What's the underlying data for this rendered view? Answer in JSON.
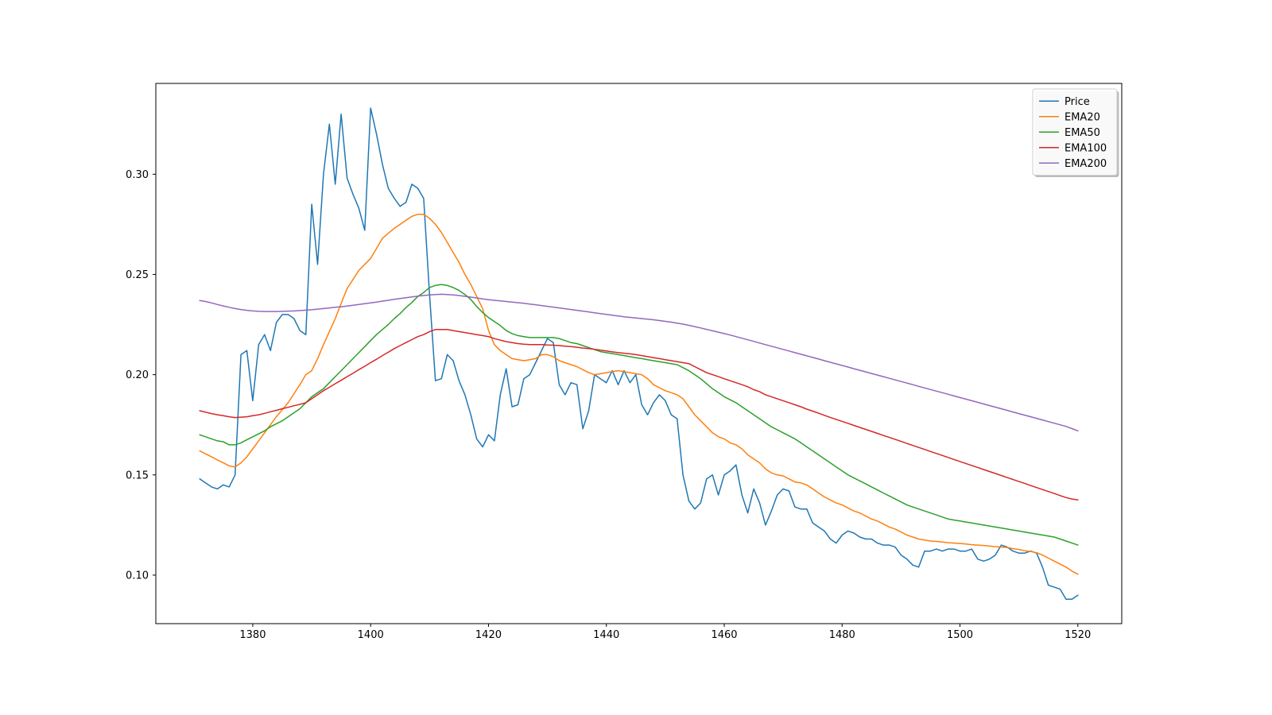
{
  "figure": {
    "background": "#ffffff",
    "frame_color": "#000000"
  },
  "chart_data": {
    "type": "line",
    "title": "",
    "xlabel": "",
    "ylabel": "",
    "grid": false,
    "legend": {
      "position": "upper right",
      "entries": [
        "Price",
        "EMA20",
        "EMA50",
        "EMA100",
        "EMA200"
      ]
    },
    "x": {
      "start": 1371,
      "step": 1,
      "count": 150
    },
    "xlim": [
      1363.55,
      1527.45
    ],
    "ylim": [
      0.0758,
      0.3453
    ],
    "x_ticks": [
      1380,
      1400,
      1420,
      1440,
      1460,
      1480,
      1500,
      1520
    ],
    "y_ticks": [
      0.1,
      0.15,
      0.2,
      0.25,
      0.3
    ],
    "y_tick_labels": [
      "0.10",
      "0.15",
      "0.20",
      "0.25",
      "0.30"
    ],
    "series": [
      {
        "name": "Price",
        "color": "#1f77b4",
        "values": [
          0.148,
          0.146,
          0.144,
          0.143,
          0.145,
          0.144,
          0.15,
          0.21,
          0.212,
          0.187,
          0.215,
          0.22,
          0.212,
          0.226,
          0.23,
          0.23,
          0.228,
          0.222,
          0.22,
          0.285,
          0.255,
          0.3,
          0.325,
          0.295,
          0.33,
          0.298,
          0.29,
          0.283,
          0.272,
          0.333,
          0.32,
          0.305,
          0.293,
          0.288,
          0.284,
          0.286,
          0.295,
          0.293,
          0.288,
          0.24,
          0.197,
          0.198,
          0.21,
          0.207,
          0.197,
          0.19,
          0.18,
          0.168,
          0.164,
          0.17,
          0.167,
          0.19,
          0.203,
          0.184,
          0.185,
          0.198,
          0.2,
          0.206,
          0.212,
          0.218,
          0.216,
          0.195,
          0.19,
          0.196,
          0.195,
          0.173,
          0.182,
          0.2,
          0.198,
          0.196,
          0.202,
          0.195,
          0.202,
          0.196,
          0.2,
          0.185,
          0.18,
          0.186,
          0.19,
          0.187,
          0.18,
          0.178,
          0.15,
          0.137,
          0.133,
          0.136,
          0.148,
          0.15,
          0.14,
          0.15,
          0.152,
          0.155,
          0.14,
          0.131,
          0.143,
          0.136,
          0.125,
          0.132,
          0.14,
          0.143,
          0.142,
          0.134,
          0.133,
          0.133,
          0.126,
          0.124,
          0.122,
          0.118,
          0.116,
          0.12,
          0.122,
          0.121,
          0.119,
          0.118,
          0.118,
          0.116,
          0.115,
          0.115,
          0.114,
          0.11,
          0.108,
          0.105,
          0.104,
          0.112,
          0.112,
          0.113,
          0.112,
          0.113,
          0.113,
          0.112,
          0.112,
          0.113,
          0.108,
          0.107,
          0.108,
          0.11,
          0.115,
          0.114,
          0.112,
          0.111,
          0.111,
          0.112,
          0.111,
          0.104,
          0.095,
          0.094,
          0.093,
          0.088,
          0.088,
          0.09
        ]
      },
      {
        "name": "EMA20",
        "color": "#ff7f0e",
        "values": [
          0.162,
          0.1605,
          0.159,
          0.1575,
          0.156,
          0.1545,
          0.154,
          0.156,
          0.159,
          0.163,
          0.167,
          0.171,
          0.175,
          0.179,
          0.1825,
          0.186,
          0.1905,
          0.195,
          0.2,
          0.202,
          0.208,
          0.215,
          0.2215,
          0.228,
          0.2355,
          0.243,
          0.2475,
          0.252,
          0.255,
          0.258,
          0.263,
          0.268,
          0.2705,
          0.273,
          0.275,
          0.277,
          0.279,
          0.28,
          0.28,
          0.278,
          0.275,
          0.271,
          0.266,
          0.261,
          0.256,
          0.25,
          0.245,
          0.239,
          0.233,
          0.222,
          0.215,
          0.212,
          0.21,
          0.208,
          0.2075,
          0.207,
          0.2075,
          0.208,
          0.21,
          0.21,
          0.209,
          0.207,
          0.206,
          0.205,
          0.204,
          0.2025,
          0.201,
          0.2,
          0.2005,
          0.201,
          0.2015,
          0.202,
          0.2015,
          0.201,
          0.2005,
          0.2,
          0.198,
          0.195,
          0.1935,
          0.192,
          0.191,
          0.19,
          0.188,
          0.184,
          0.18,
          0.177,
          0.174,
          0.171,
          0.169,
          0.168,
          0.166,
          0.165,
          0.163,
          0.16,
          0.158,
          0.156,
          0.153,
          0.151,
          0.15,
          0.1495,
          0.148,
          0.1465,
          0.146,
          0.145,
          0.143,
          0.141,
          0.139,
          0.1375,
          0.136,
          0.135,
          0.1335,
          0.132,
          0.131,
          0.1295,
          0.128,
          0.127,
          0.1255,
          0.124,
          0.123,
          0.1215,
          0.12,
          0.119,
          0.118,
          0.1175,
          0.117,
          0.1168,
          0.1165,
          0.1162,
          0.116,
          0.1158,
          0.1155,
          0.1152,
          0.115,
          0.1148,
          0.1145,
          0.1142,
          0.114,
          0.1138,
          0.1132,
          0.1128,
          0.1122,
          0.1118,
          0.1112,
          0.11,
          0.1085,
          0.107,
          0.1055,
          0.104,
          0.102,
          0.1005
        ]
      },
      {
        "name": "EMA50",
        "color": "#2ca02c",
        "values": [
          0.17,
          0.169,
          0.168,
          0.167,
          0.1665,
          0.165,
          0.165,
          0.166,
          0.1675,
          0.169,
          0.1705,
          0.172,
          0.174,
          0.1755,
          0.177,
          0.179,
          0.181,
          0.183,
          0.186,
          0.189,
          0.191,
          0.193,
          0.196,
          0.199,
          0.202,
          0.205,
          0.208,
          0.211,
          0.214,
          0.217,
          0.22,
          0.2225,
          0.225,
          0.228,
          0.2305,
          0.2335,
          0.236,
          0.239,
          0.241,
          0.2435,
          0.2445,
          0.245,
          0.2445,
          0.2435,
          0.242,
          0.24,
          0.2375,
          0.234,
          0.231,
          0.2285,
          0.2265,
          0.2245,
          0.222,
          0.2205,
          0.2195,
          0.219,
          0.2185,
          0.2185,
          0.2185,
          0.2185,
          0.2185,
          0.218,
          0.217,
          0.216,
          0.2155,
          0.2145,
          0.2135,
          0.2125,
          0.2115,
          0.211,
          0.2105,
          0.21,
          0.2095,
          0.209,
          0.2085,
          0.208,
          0.2075,
          0.207,
          0.2065,
          0.206,
          0.2055,
          0.205,
          0.2035,
          0.202,
          0.2,
          0.198,
          0.1955,
          0.193,
          0.191,
          0.189,
          0.1875,
          0.186,
          0.184,
          0.182,
          0.18,
          0.178,
          0.176,
          0.174,
          0.1725,
          0.171,
          0.1695,
          0.168,
          0.166,
          0.164,
          0.162,
          0.16,
          0.158,
          0.156,
          0.154,
          0.152,
          0.15,
          0.1485,
          0.147,
          0.1455,
          0.144,
          0.1425,
          0.141,
          0.1395,
          0.138,
          0.1365,
          0.135,
          0.134,
          0.133,
          0.132,
          0.131,
          0.13,
          0.129,
          0.128,
          0.1275,
          0.127,
          0.1265,
          0.126,
          0.1255,
          0.125,
          0.1245,
          0.124,
          0.1235,
          0.123,
          0.1225,
          0.122,
          0.1215,
          0.121,
          0.1205,
          0.12,
          0.1195,
          0.119,
          0.118,
          0.117,
          0.116,
          0.115
        ]
      },
      {
        "name": "EMA100",
        "color": "#d62728",
        "values": [
          0.182,
          0.1813,
          0.1806,
          0.18,
          0.1795,
          0.179,
          0.1786,
          0.1788,
          0.179,
          0.1795,
          0.18,
          0.1807,
          0.1815,
          0.1822,
          0.183,
          0.1837,
          0.1845,
          0.1852,
          0.186,
          0.188,
          0.19,
          0.192,
          0.1937,
          0.1955,
          0.1972,
          0.199,
          0.2007,
          0.2025,
          0.2042,
          0.206,
          0.2077,
          0.2095,
          0.2112,
          0.213,
          0.2145,
          0.216,
          0.2175,
          0.219,
          0.22,
          0.2215,
          0.2225,
          0.2225,
          0.2225,
          0.222,
          0.2215,
          0.221,
          0.2205,
          0.22,
          0.2195,
          0.219,
          0.218,
          0.2172,
          0.2165,
          0.216,
          0.2155,
          0.2152,
          0.215,
          0.215,
          0.215,
          0.2148,
          0.2147,
          0.2145,
          0.2142,
          0.214,
          0.2137,
          0.2133,
          0.213,
          0.2126,
          0.2122,
          0.2118,
          0.2114,
          0.211,
          0.2107,
          0.2104,
          0.21,
          0.2095,
          0.209,
          0.2085,
          0.208,
          0.2075,
          0.207,
          0.2065,
          0.206,
          0.2055,
          0.204,
          0.2025,
          0.201,
          0.2,
          0.199,
          0.198,
          0.197,
          0.196,
          0.195,
          0.194,
          0.1925,
          0.1915,
          0.19,
          0.189,
          0.188,
          0.187,
          0.186,
          0.185,
          0.184,
          0.1828,
          0.1818,
          0.1808,
          0.1797,
          0.1787,
          0.1777,
          0.1767,
          0.1757,
          0.1747,
          0.1737,
          0.1727,
          0.1717,
          0.1707,
          0.1697,
          0.1687,
          0.1677,
          0.1667,
          0.1657,
          0.1647,
          0.1637,
          0.1627,
          0.1617,
          0.1607,
          0.1597,
          0.1587,
          0.1577,
          0.1567,
          0.1557,
          0.1547,
          0.1537,
          0.1527,
          0.1517,
          0.1507,
          0.1497,
          0.1487,
          0.1477,
          0.1467,
          0.1457,
          0.1447,
          0.1437,
          0.1427,
          0.1417,
          0.1407,
          0.1397,
          0.1387,
          0.138,
          0.1375
        ]
      },
      {
        "name": "EMA200",
        "color": "#9467bd",
        "values": [
          0.237,
          0.2365,
          0.2358,
          0.235,
          0.2343,
          0.2336,
          0.233,
          0.2325,
          0.2321,
          0.2318,
          0.2316,
          0.2315,
          0.2315,
          0.2315,
          0.2316,
          0.2317,
          0.2318,
          0.232,
          0.2322,
          0.2324,
          0.2327,
          0.233,
          0.2333,
          0.2336,
          0.2339,
          0.2342,
          0.2346,
          0.235,
          0.2354,
          0.2358,
          0.2362,
          0.2367,
          0.2371,
          0.2376,
          0.238,
          0.2384,
          0.2388,
          0.2392,
          0.2395,
          0.2398,
          0.24,
          0.2401,
          0.24,
          0.2398,
          0.2395,
          0.2391,
          0.2387,
          0.2383,
          0.2378,
          0.2374,
          0.2371,
          0.2368,
          0.2365,
          0.2362,
          0.2359,
          0.2356,
          0.2352,
          0.2349,
          0.2345,
          0.2341,
          0.2337,
          0.2333,
          0.2329,
          0.2325,
          0.2321,
          0.2317,
          0.2313,
          0.2309,
          0.2305,
          0.2301,
          0.2297,
          0.2293,
          0.2289,
          0.2286,
          0.2283,
          0.228,
          0.2277,
          0.2274,
          0.227,
          0.2266,
          0.2262,
          0.2257,
          0.2252,
          0.2246,
          0.224,
          0.2233,
          0.2226,
          0.2219,
          0.2212,
          0.2205,
          0.2198,
          0.219,
          0.2182,
          0.2174,
          0.2166,
          0.2158,
          0.215,
          0.2142,
          0.2134,
          0.2126,
          0.2118,
          0.211,
          0.2102,
          0.2094,
          0.2086,
          0.2078,
          0.207,
          0.2062,
          0.2054,
          0.2046,
          0.2038,
          0.203,
          0.2022,
          0.2014,
          0.2006,
          0.1998,
          0.199,
          0.1982,
          0.1974,
          0.1966,
          0.1958,
          0.195,
          0.1942,
          0.1934,
          0.1926,
          0.1918,
          0.191,
          0.1902,
          0.1894,
          0.1886,
          0.1878,
          0.187,
          0.1862,
          0.1854,
          0.1846,
          0.1838,
          0.183,
          0.1822,
          0.1814,
          0.1806,
          0.1798,
          0.179,
          0.1782,
          0.1774,
          0.1766,
          0.1758,
          0.175,
          0.1742,
          0.1731,
          0.172
        ]
      }
    ]
  }
}
